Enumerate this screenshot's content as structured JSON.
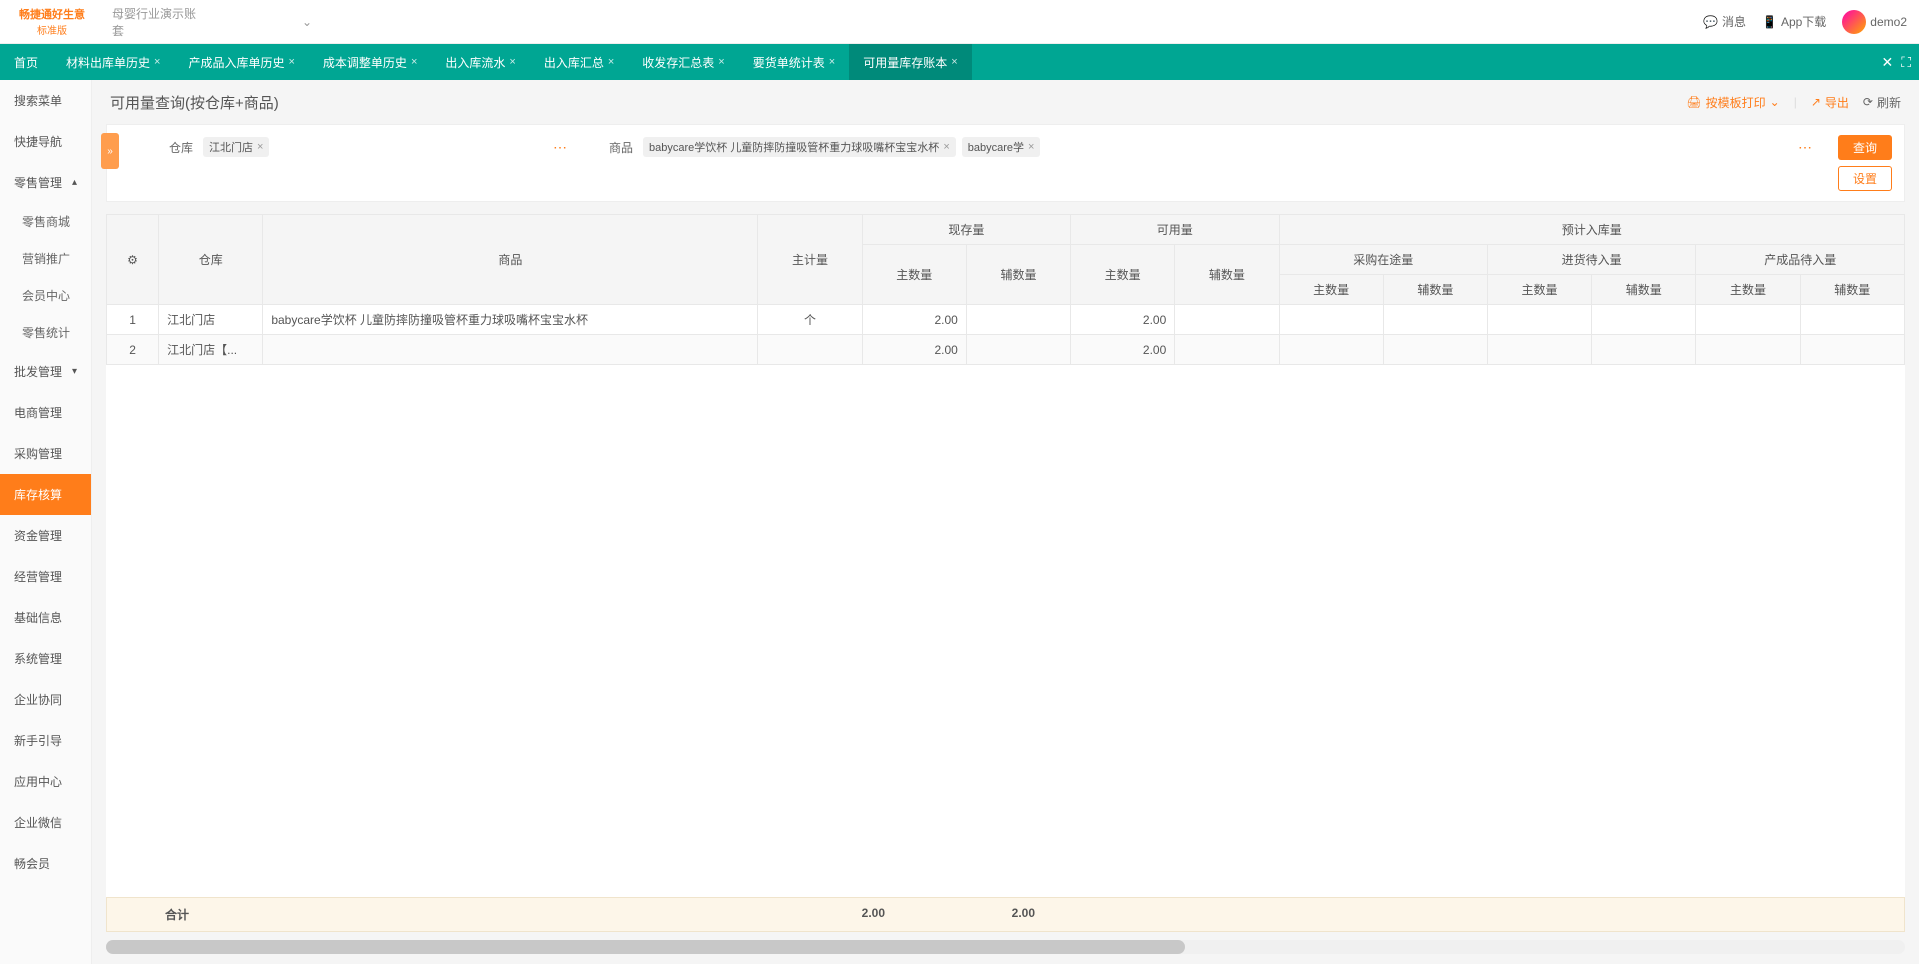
{
  "header": {
    "brand": "畅捷通好生意",
    "edition": "标准版",
    "account": "母婴行业演示账套",
    "message": "消息",
    "download": "App下载",
    "user": "demo2"
  },
  "tabs": {
    "items": [
      {
        "label": "首页",
        "closable": false
      },
      {
        "label": "材料出库单历史",
        "closable": true
      },
      {
        "label": "产成品入库单历史",
        "closable": true
      },
      {
        "label": "成本调整单历史",
        "closable": true
      },
      {
        "label": "出入库流水",
        "closable": true
      },
      {
        "label": "出入库汇总",
        "closable": true
      },
      {
        "label": "收发存汇总表",
        "closable": true
      },
      {
        "label": "要货单统计表",
        "closable": true
      },
      {
        "label": "可用量库存账本",
        "closable": true,
        "active": true
      }
    ]
  },
  "sidebar": {
    "items": [
      {
        "label": "搜索菜单",
        "type": "item"
      },
      {
        "label": "快捷导航",
        "type": "item"
      },
      {
        "label": "零售管理",
        "type": "group",
        "expanded": true
      },
      {
        "label": "零售商城",
        "type": "sub"
      },
      {
        "label": "营销推广",
        "type": "sub"
      },
      {
        "label": "会员中心",
        "type": "sub"
      },
      {
        "label": "零售统计",
        "type": "sub"
      },
      {
        "label": "批发管理",
        "type": "group",
        "expanded": false
      },
      {
        "label": "电商管理",
        "type": "item"
      },
      {
        "label": "采购管理",
        "type": "item"
      },
      {
        "label": "库存核算",
        "type": "item",
        "active": true
      },
      {
        "label": "资金管理",
        "type": "item"
      },
      {
        "label": "经营管理",
        "type": "item"
      },
      {
        "label": "基础信息",
        "type": "item"
      },
      {
        "label": "系统管理",
        "type": "item"
      },
      {
        "label": "企业协同",
        "type": "item"
      },
      {
        "label": "新手引导",
        "type": "item"
      },
      {
        "label": "应用中心",
        "type": "item"
      },
      {
        "label": "企业微信",
        "type": "item"
      },
      {
        "label": "畅会员",
        "type": "item"
      }
    ]
  },
  "page": {
    "title": "可用量查询(按仓库+商品)",
    "actions": {
      "print": "按模板打印",
      "export": "导出",
      "refresh": "刷新"
    }
  },
  "filter": {
    "warehouse_label": "仓库",
    "warehouse_tags": [
      "江北门店"
    ],
    "product_label": "商品",
    "product_tags": [
      "babycare学饮杯 儿童防摔防撞吸管杯重力球吸嘴杯宝宝水杯",
      "babycare学"
    ],
    "query_btn": "查询",
    "settings_btn": "设置"
  },
  "table": {
    "headers": {
      "warehouse": "仓库",
      "product": "商品",
      "main_unit": "主计量",
      "stock": "现存量",
      "available": "可用量",
      "expected_in": "预计入库量",
      "main_qty": "主数量",
      "aux_qty": "辅数量",
      "purchase_transit": "采购在途量",
      "goods_pending": "进货待入量",
      "finished_pending": "产成品待入量"
    },
    "rows": [
      {
        "idx": "1",
        "warehouse": "江北门店",
        "product": "babycare学饮杯 儿童防摔防撞吸管杯重力球吸嘴杯宝宝水杯",
        "unit": "个",
        "stock_main": "2.00",
        "stock_aux": "",
        "avail_main": "2.00",
        "avail_aux": ""
      },
      {
        "idx": "2",
        "warehouse": "江北门店【...",
        "product": "",
        "unit": "",
        "stock_main": "2.00",
        "stock_aux": "",
        "avail_main": "2.00",
        "avail_aux": ""
      }
    ],
    "footer": {
      "label": "合计",
      "stock_main": "2.00",
      "avail_main": "2.00"
    }
  }
}
